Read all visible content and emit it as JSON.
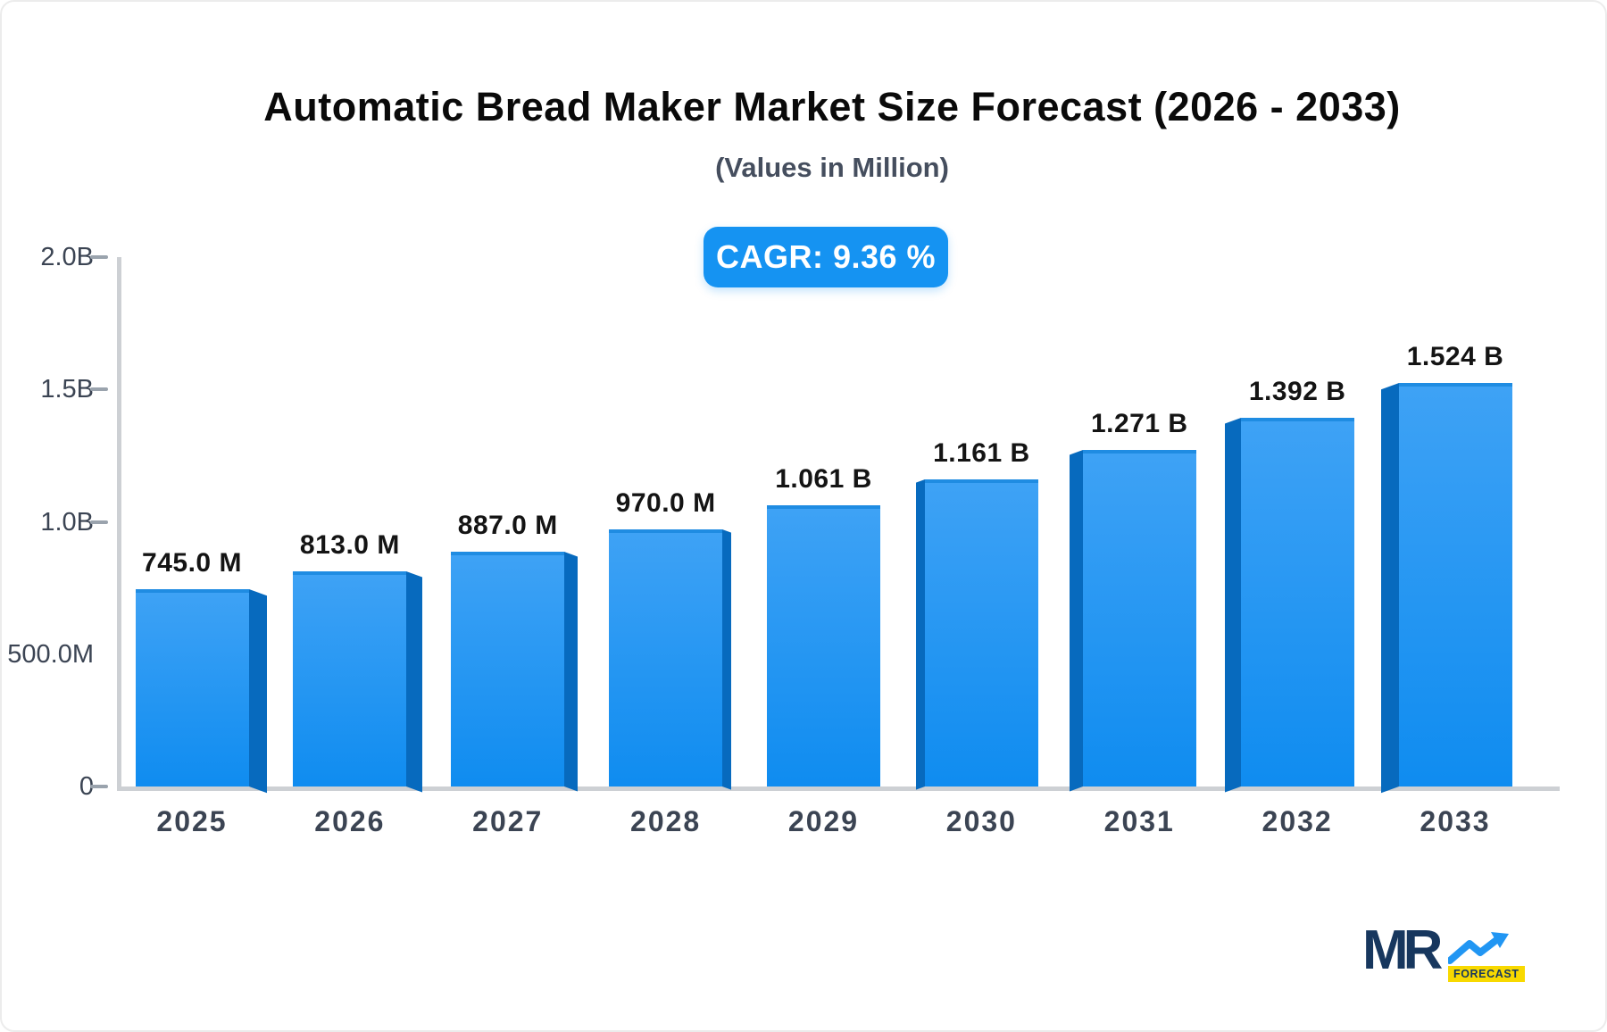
{
  "header": {
    "title": "Automatic Bread Maker Market Size Forecast (2026 - 2033)",
    "subtitle": "(Values in Million)",
    "cagr_badge": "CAGR: 9.36 %"
  },
  "chart_data": {
    "type": "bar",
    "title": "Automatic Bread Maker Market Size Forecast (2026 - 2033)",
    "subtitle": "(Values in Million)",
    "cagr_percent": 9.36,
    "categories": [
      "2025",
      "2026",
      "2027",
      "2028",
      "2029",
      "2030",
      "2031",
      "2032",
      "2033"
    ],
    "values_millions": [
      745,
      813,
      887,
      970,
      1061,
      1161,
      1271,
      1392,
      1524
    ],
    "value_labels": [
      "745.0 M",
      "813.0 M",
      "887.0 M",
      "970.0 M",
      "1.061 B",
      "1.161 B",
      "1.271 B",
      "1.392 B",
      "1.524 B"
    ],
    "y_axis": {
      "max_millions": 2000,
      "ticks": [
        {
          "label": "2.0B",
          "millions": 2000,
          "dash": true
        },
        {
          "label": "1.5B",
          "millions": 1500,
          "dash": true
        },
        {
          "label": "1.0B",
          "millions": 1000,
          "dash": true
        },
        {
          "label": "500.0M",
          "millions": 500,
          "dash": false
        },
        {
          "label": "0",
          "millions": 0,
          "dash": true
        }
      ]
    },
    "grid": false,
    "legend": false
  },
  "colors": {
    "badge_bg": "#1593f2",
    "bar_face_top": "#3ea2f5",
    "bar_face_bottom": "#0f8cf0",
    "bar_side": "#076abe",
    "bar_top_edge": "#1f8ce2",
    "axis_line": "#cdd0d4",
    "tick_text": "#3b4453",
    "value_text": "#141414",
    "logo_navy": "#17375e",
    "logo_blue": "#2196f3",
    "logo_yellow": "#f8d900"
  },
  "logo": {
    "monogram": "MR",
    "tag": "FORECAST"
  }
}
